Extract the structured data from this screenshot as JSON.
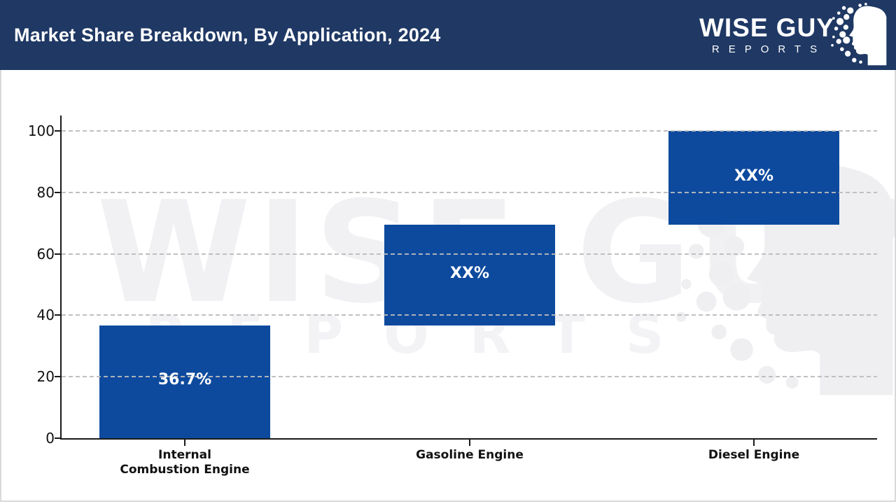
{
  "header": {
    "title": "Market Share Breakdown, By Application, 2024",
    "logo": {
      "brand_line1": "WISE GUY",
      "brand_line2": "REPORTS"
    }
  },
  "watermark": {
    "line1": "WISE GUY",
    "line2": "REPORTS"
  },
  "colors": {
    "header_bg": "#1f3864",
    "bar": "#0d4a9e",
    "bar_label": "#ffffff",
    "axis": "#1a1a1a",
    "grid": "#bbbbbb",
    "watermark": "#f1f1f4",
    "border": "#d9d9d9"
  },
  "chart_data": {
    "type": "bar",
    "subtype": "waterfall",
    "title": "Market Share Breakdown, By Application, 2024",
    "categories": [
      "Internal Combustion Engine",
      "Gasoline Engine",
      "Diesel Engine"
    ],
    "categories_wrapped": [
      [
        "Internal",
        "Combustion Engine"
      ],
      [
        "Gasoline Engine"
      ],
      [
        "Diesel Engine"
      ]
    ],
    "segments": [
      {
        "start": 0,
        "end": 36.7,
        "label": "36.7%"
      },
      {
        "start": 36.7,
        "end": 69.5,
        "label": "XX%"
      },
      {
        "start": 69.5,
        "end": 100,
        "label": "XX%"
      }
    ],
    "y_ticks": [
      0,
      20,
      40,
      60,
      80,
      100
    ],
    "ylim": [
      0,
      105
    ],
    "grid": "dashed-horizontal-above-bars",
    "legend": null,
    "xlabel": "",
    "ylabel": ""
  }
}
